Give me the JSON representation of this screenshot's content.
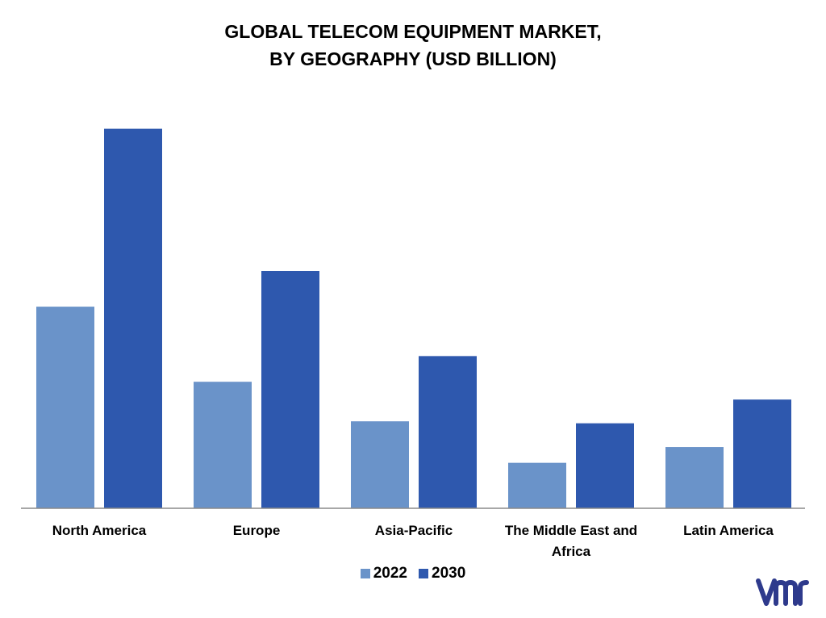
{
  "chart_data": {
    "type": "bar",
    "title": [
      "GLOBAL TELECOM EQUIPMENT MARKET,",
      "BY GEOGRAPHY (USD BILLION)"
    ],
    "categories": [
      [
        "North America"
      ],
      [
        "Europe"
      ],
      [
        "Asia-Pacific"
      ],
      [
        "The Middle East and",
        "Africa"
      ],
      [
        "Latin America"
      ]
    ],
    "series": [
      {
        "name": "2022",
        "color": "#6A93C9",
        "values": [
          51,
          32,
          22,
          11.5,
          15.5
        ]
      },
      {
        "name": "2030",
        "color": "#2E58AE",
        "values": [
          96,
          60,
          38.5,
          21.5,
          27.5
        ]
      }
    ],
    "ylim": [
      0,
      100
    ],
    "grid": false,
    "legend_position": "bottom-center"
  },
  "logo": {
    "icon": "vmr-logo-icon",
    "color": "#2E3A8C"
  }
}
